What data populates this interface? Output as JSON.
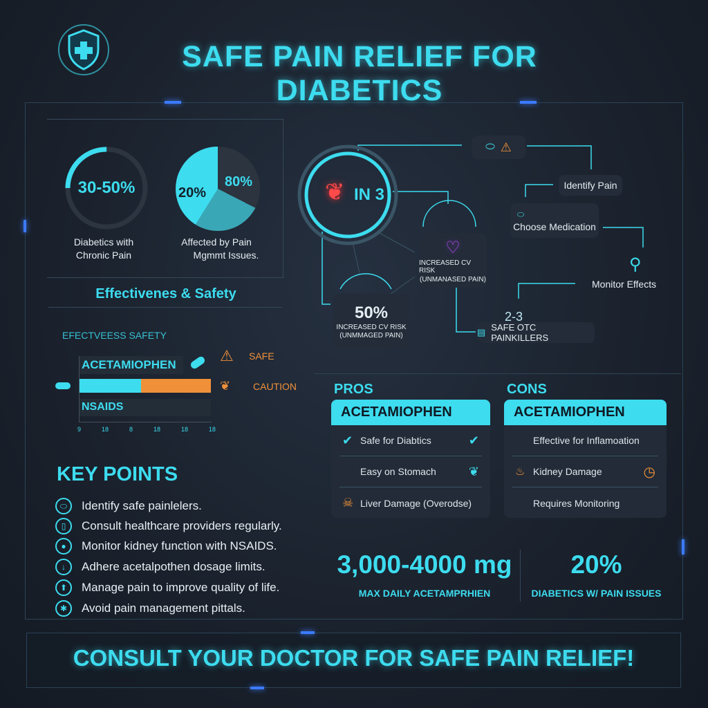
{
  "header": {
    "title": "SAFE PAIN RELIEF FOR DIABETICS",
    "logo_icon": "shield-medical-cross-icon"
  },
  "stats_panel": {
    "ring": {
      "value": "30-50%",
      "label_line1": "Diabetics with",
      "label_line2": "Chronic Pain",
      "fill_fraction": 0.25
    },
    "pie": {
      "label_a": "20%",
      "label_b": "80%",
      "caption_line1": "Affected by Pain",
      "caption_line2": "Mgmmt Issues."
    }
  },
  "effectiveness": {
    "heading": "Effectivenes & Safety",
    "chart_title": "EFECTVEESS SAFETY",
    "rows": [
      {
        "label": "ACETAMIOPHEN"
      },
      {
        "label": "NSAIDS"
      }
    ],
    "bar_split": 0.47,
    "ticks": [
      "9",
      "18",
      "8",
      "18",
      "18",
      "18"
    ],
    "legend": [
      {
        "label": "SAFE",
        "icon": "warning-icon"
      },
      {
        "label": "CAUTION",
        "icon": "kidney-icon"
      }
    ],
    "colors": {
      "effective": "#3ddcef",
      "caution": "#f0913a"
    }
  },
  "key_points": {
    "heading": "KEY POINTS",
    "items": [
      {
        "text": "Identify safe painlelers.",
        "icon": "pill-icon"
      },
      {
        "text": "Consult healthcare providers regularly.",
        "icon": "capsule-icon"
      },
      {
        "text": "Monitor kidney function with NSAIDS.",
        "icon": "person-icon"
      },
      {
        "text": "Adhere acetalpothen dosage limits.",
        "icon": "hand-icon"
      },
      {
        "text": "Manage pain to improve quality of life.",
        "icon": "arrow-up-icon"
      },
      {
        "text": "Avoid pain management pittals.",
        "icon": "asterisk-icon"
      }
    ]
  },
  "flow": {
    "hub": "IN 3",
    "identify": "Identify Pain",
    "choose": "Choose Medication",
    "monitor": "Monitor Effects",
    "cv_node": {
      "line1": "INCREASED CV RISK",
      "line2": "(UNMANASED PAIN)"
    },
    "pct_node": {
      "value": "50%",
      "line1": "INCREASED CV RISK",
      "line2": "(UNMMAGED PAIN)"
    },
    "otc_node": {
      "value": "2-3",
      "label": "SAFE OTC PAINKILLERS"
    }
  },
  "pros": {
    "heading": "PROS",
    "title": "ACETAMIOPHEN",
    "items": [
      "Safe for Diabtics",
      "Easy on Stomach",
      "Liver Damage (Overodse)"
    ]
  },
  "cons": {
    "heading": "CONS",
    "title": "ACETAMIOPHEN",
    "items": [
      "Effective for Inflamoation",
      "Kidney Damage",
      "Requires Monitoring"
    ]
  },
  "big_stats": [
    {
      "value": "3,000-4000 mg",
      "label": "MAX DAILY ACETAMPRHIEN"
    },
    {
      "value": "20%",
      "label": "DIABETICS W/ PAIN ISSUES"
    }
  ],
  "footer": {
    "banner": "CONSULT YOUR DOCTOR FOR SAFE PAIN RELIEF!"
  }
}
